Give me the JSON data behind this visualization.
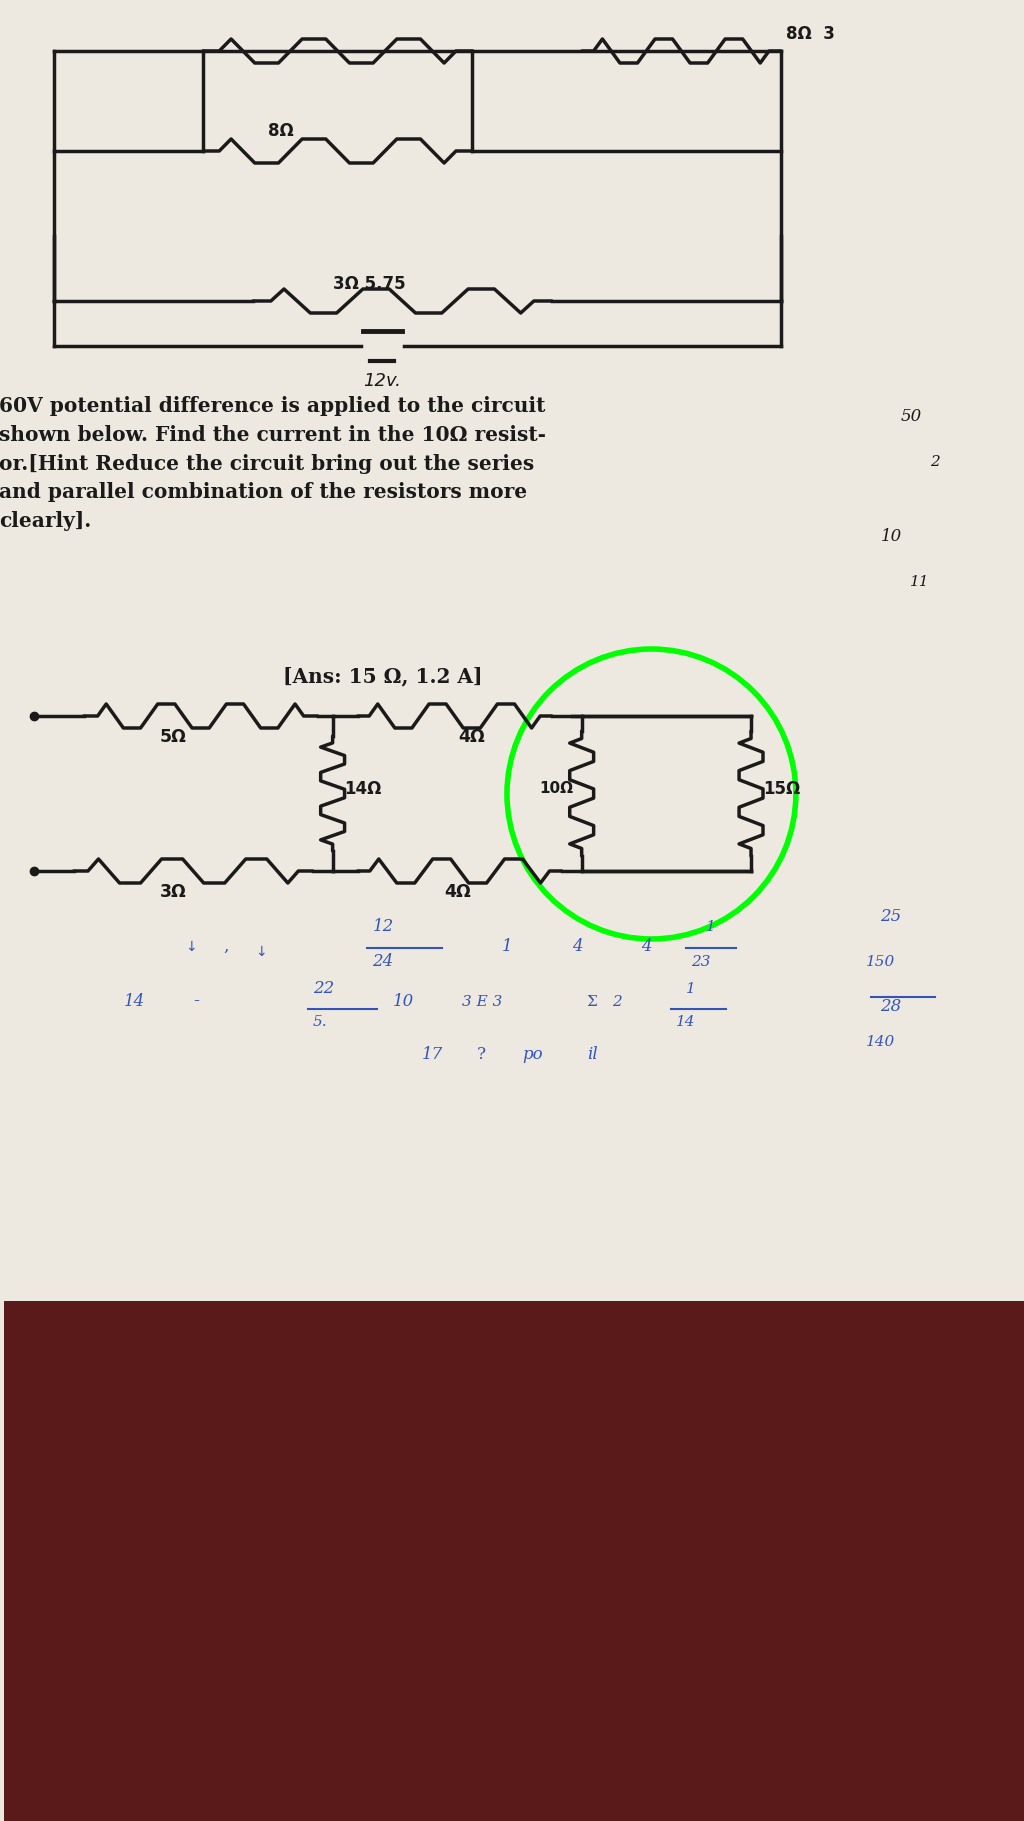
{
  "page_bg": "#ede9e0",
  "ink_color": "#1a1a1a",
  "blue_ink": "#3355bb",
  "green_circle_color": "#00ff00",
  "dark_red_bg": "#5a1a1a",
  "circuit1": {
    "res_8_parallel_label": "8Ω",
    "res_8_series_label": "8Ω  3",
    "res_3_label": "3Ω 5.75",
    "bat_label": "12v."
  },
  "circuit2": {
    "res_5": "5Ω",
    "res_4top": "4Ω",
    "res_14": "14Ω",
    "res_10": "10Ω",
    "res_15": "15Ω",
    "res_3": "3Ω",
    "res_4bot": "4Ω"
  },
  "problem_text": "60V potential difference is applied to the circuit\nshown below. Find the current in the 10Ω resist-\nor.[Hint Reduce the circuit bring out the series\nand parallel combination of the resistors more\nclearly].",
  "ans_text": "[Ans: 15 Ω, 1.2 A]",
  "right_margin": [
    "50",
    "2",
    "10",
    "11"
  ],
  "right_margin_blue": [
    "25",
    "150",
    "28",
    "140"
  ]
}
